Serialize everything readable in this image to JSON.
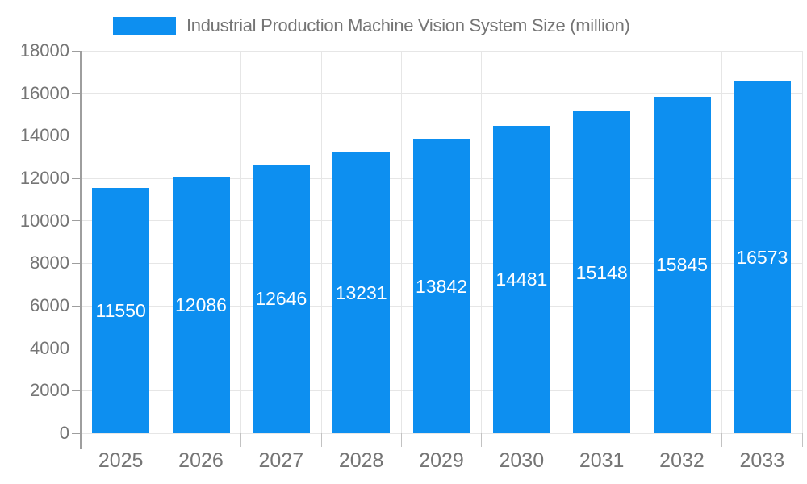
{
  "chart_data": {
    "type": "bar",
    "title": "Industrial Production Machine Vision System Size (million)",
    "categories": [
      "2025",
      "2026",
      "2027",
      "2028",
      "2029",
      "2030",
      "2031",
      "2032",
      "2033"
    ],
    "values": [
      11550,
      12086,
      12646,
      13231,
      13842,
      14481,
      15148,
      15845,
      16573
    ],
    "xlabel": "",
    "ylabel": "",
    "ylim": [
      0,
      18000
    ],
    "ytick_step": 2000,
    "ytick_labels": [
      "0",
      "2000",
      "4000",
      "6000",
      "8000",
      "10000",
      "12000",
      "14000",
      "16000",
      "18000"
    ],
    "legend_position": "top",
    "grid": true,
    "colors": {
      "bar": "#0d8ff0",
      "value_label": "#ffffff",
      "axis_label": "#757575",
      "legend_text": "#757575",
      "gridline": "#e6e6e6",
      "axis_line": "#9e9e9e",
      "tick": "#c2c2c2",
      "background": "#ffffff"
    }
  }
}
